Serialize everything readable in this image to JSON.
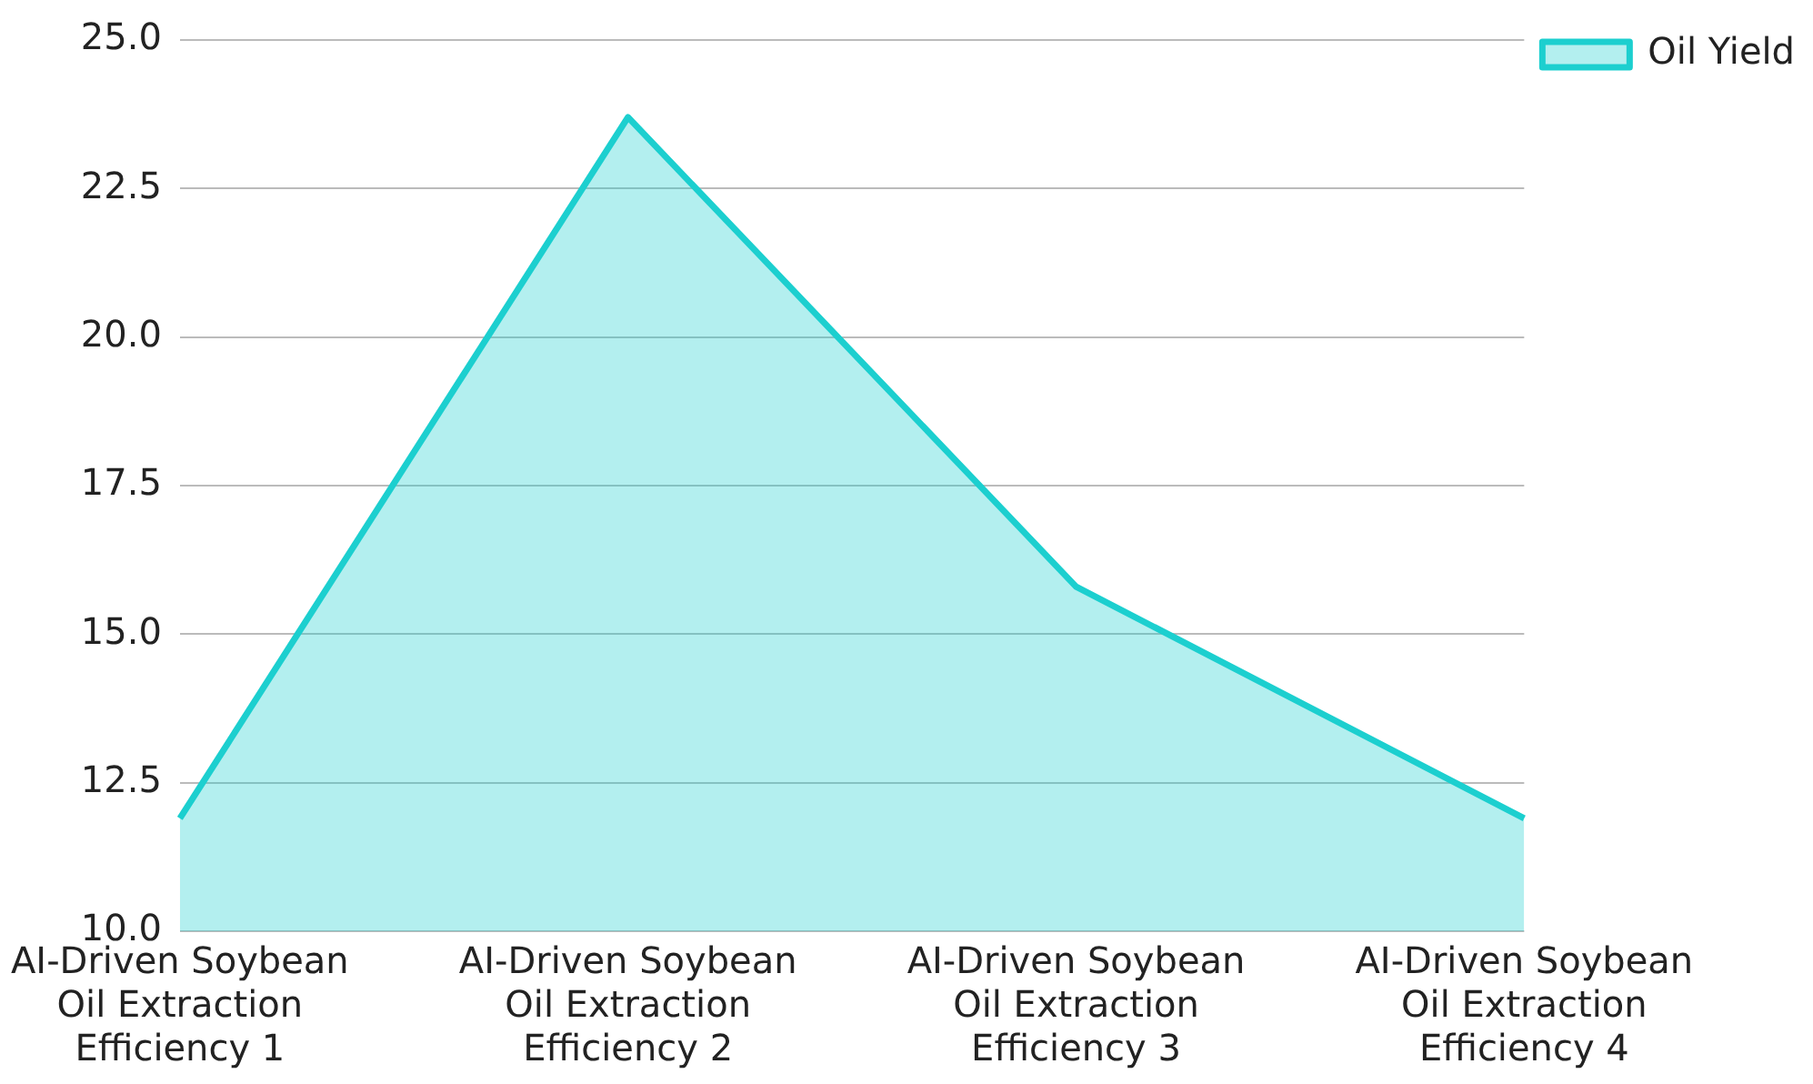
{
  "chart_data": {
    "type": "area",
    "categories": [
      "AI-Driven Soybean Oil Extraction Efficiency 1",
      "AI-Driven Soybean Oil Extraction Efficiency 2",
      "AI-Driven Soybean Oil Extraction Efficiency 3",
      "AI-Driven Soybean Oil Extraction Efficiency 4"
    ],
    "series": [
      {
        "name": "Oil Yield",
        "color": "#1ccfcf",
        "values": [
          11.9,
          23.7,
          15.8,
          11.9
        ]
      }
    ],
    "ylim": [
      10,
      25
    ],
    "yticks": [
      {
        "value": 10,
        "label": "10.0"
      },
      {
        "value": 12.5,
        "label": "12.5"
      },
      {
        "value": 15,
        "label": "15.0"
      },
      {
        "value": 17.5,
        "label": "17.5"
      },
      {
        "value": 20,
        "label": "20.0"
      },
      {
        "value": 22.5,
        "label": "22.5"
      },
      {
        "value": 25,
        "label": "25.0"
      }
    ],
    "grid": "y",
    "legend": "top right",
    "marker": "none",
    "line_style": "solid"
  }
}
